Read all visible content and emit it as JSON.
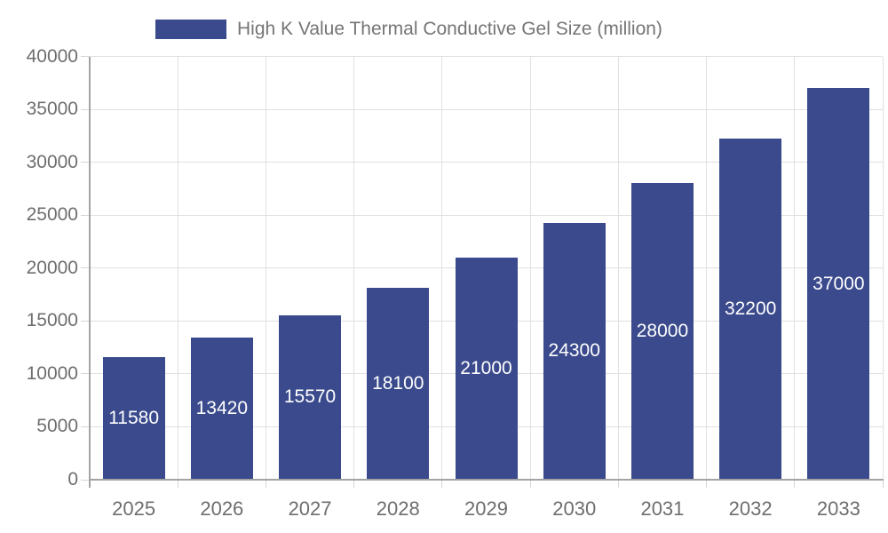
{
  "legend": {
    "label": "High K Value Thermal Conductive Gel Size (million)"
  },
  "chart_data": {
    "type": "bar",
    "title": "High K Value Thermal Conductive Gel Size (million)",
    "series_name": "High K Value Thermal Conductive Gel Size (million)",
    "categories": [
      "2025",
      "2026",
      "2027",
      "2028",
      "2029",
      "2030",
      "2031",
      "2032",
      "2033"
    ],
    "values": [
      11580,
      13420,
      15570,
      18100,
      21000,
      24300,
      28000,
      32200,
      37000
    ],
    "value_labels": [
      "11580",
      "13420",
      "15570",
      "18100",
      "21000",
      "24300",
      "28000",
      "32200",
      "37000"
    ],
    "xlabel": "",
    "ylabel": "",
    "ylim": [
      0,
      40000
    ],
    "ytick_interval": 5000,
    "yticks": [
      0,
      5000,
      10000,
      15000,
      20000,
      25000,
      30000,
      35000,
      40000
    ],
    "ytick_labels": [
      "0",
      "5000",
      "10000",
      "15000",
      "20000",
      "25000",
      "30000",
      "35000",
      "40000"
    ],
    "grid": true,
    "legend_position": "top",
    "value_label_position": "inside-center"
  },
  "colors": {
    "bar": "#3a4a8c",
    "background": "#ffffff",
    "grid_line": "#e0e0e0",
    "axis_line": "#a3a3a3",
    "tick_line": "#d6d6d6",
    "axis_text": "#6e6e6e",
    "title_text": "#757575",
    "bar_label_text": "#ffffff"
  }
}
